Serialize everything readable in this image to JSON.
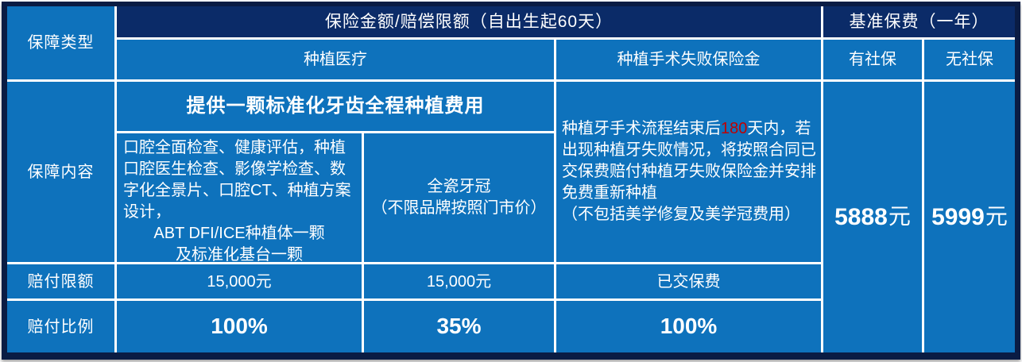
{
  "header": {
    "amount_title": "保险金额/赔偿限额（自出生起60天）",
    "premium_title": "基准保费（一年）"
  },
  "columns": {
    "implant_medical": "种植医疗",
    "failure_insurance": "种植手术失败保险金",
    "with_social": "有社保",
    "without_social": "无社保"
  },
  "row_labels": {
    "type": "保障类型",
    "content": "保障内容",
    "limit": "赔付限额",
    "ratio": "赔付比例"
  },
  "content": {
    "title": "提供一颗标准化牙齿全程种植费用",
    "medical_detail_p1": "口腔全面检查、健康评估，种植口腔医生检查、影像学检查、数字化全景片、口腔CT、种植方案设计，",
    "medical_detail_l2": "ABT DFI/ICE种植体一颗",
    "medical_detail_l3": "及标准化基台一颗",
    "crown_l1": "全瓷牙冠",
    "crown_l2": "（不限品牌按照门市价）",
    "failure_pre": "种植牙手术流程结束后",
    "failure_days": "180",
    "failure_post": "天内，若出现种植牙失败情况，将按照合同已交保费赔付种植牙失败保险金并安排免费重新种植",
    "failure_note": "（不包括美学修复及美学冠费用）"
  },
  "limits": {
    "medical": "15,000元",
    "crown": "15,000元",
    "failure": "已交保费"
  },
  "ratios": {
    "medical": "100%",
    "crown": "35%",
    "failure": "100%"
  },
  "premiums": {
    "with_social_value": "5888",
    "without_social_value": "5999",
    "unit": "元"
  },
  "colors": {
    "cell_blue": "#0e72bc",
    "header_navy": "#0b2b68",
    "frame_navy": "#0a1c44",
    "grid_line": "#ffffff",
    "text": "#ffffff",
    "highlight_red": "#c00000"
  }
}
